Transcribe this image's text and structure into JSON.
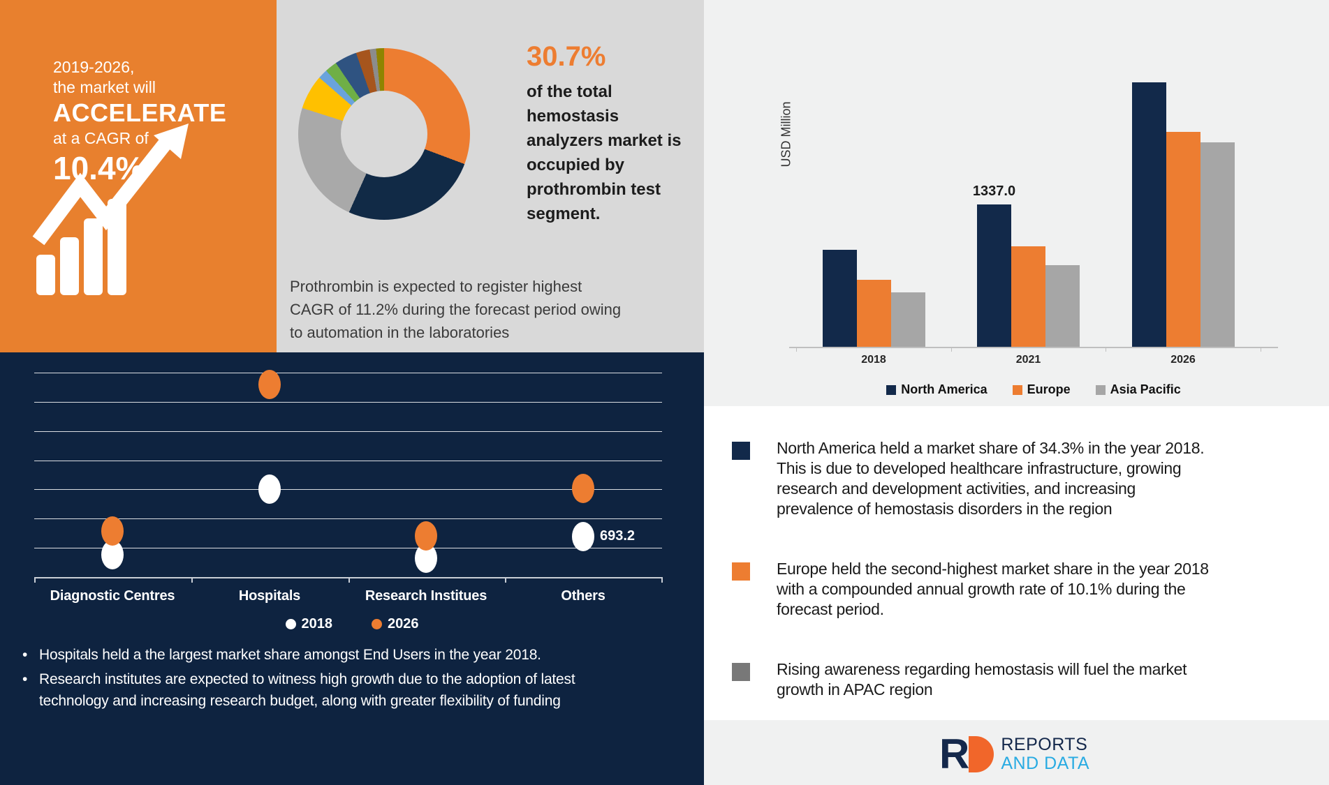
{
  "accelerate_panel": {
    "line1": "2019-2026,",
    "line2": "the market will",
    "line3": "ACCELERATE",
    "line4": "at a CAGR of",
    "line5": "10.4%"
  },
  "donut_panel": {
    "headline_value": "30.7%",
    "headline_rest": "of the total\nhemostasis\nanalyzers market is\noccupied by\nprothrombin test\nsegment.",
    "paragraph": "Prothrombin is expected to register highest\nCAGR of 11.2% during the forecast period owing\nto automation in the laboratories"
  },
  "navy_panel": {
    "bullets": [
      "Hospitals held a the largest market share amongst End Users in the year 2018.",
      "Research institutes are expected to witness high growth due to the adoption of latest\ntechnology and increasing research budget, along with greater flexibility of funding"
    ]
  },
  "right_panel": {
    "bullets": [
      {
        "color": "#12294A",
        "text": "North America held a market share of 34.3% in the year 2018.\nThis is due to developed healthcare infrastructure, growing\nresearch and development activities, and increasing\nprevalence of hemostasis disorders in the region"
      },
      {
        "color": "#ED7D31",
        "text": "Europe held the second-highest market share in the year 2018\nwith a compounded annual growth rate of 10.1% during the\nforecast period."
      },
      {
        "color": "#787878",
        "text": "Rising awareness regarding hemostasis will fuel the market\ngrowth in APAC region"
      }
    ]
  },
  "logo": {
    "mark": "R",
    "word1": "REPORTS",
    "word2": "AND DATA",
    "navy": "#14284B",
    "orange": "#F1662A",
    "blue": "#29ABE2"
  },
  "chart_data": [
    {
      "type": "pie",
      "title": "Hemostasis analyzers market by test segment",
      "donut": true,
      "values": [
        30.7,
        26.0,
        23.2,
        6.5,
        1.8,
        2.3,
        4.2,
        2.6,
        1.2,
        1.5
      ],
      "colors": [
        "#ED7D31",
        "#112A46",
        "#A9A9A9",
        "#FFC000",
        "#6AA3DC",
        "#6FAF46",
        "#2F5381",
        "#A6551D",
        "#8C8C8C",
        "#8F8400"
      ],
      "highlight": {
        "value": 30.7,
        "label": "prothrombin test segment"
      }
    },
    {
      "type": "bar",
      "categories": [
        "2018",
        "2021",
        "2026"
      ],
      "series": [
        {
          "name": "North America",
          "color": "#12294A",
          "values": [
            910,
            1337,
            2480
          ]
        },
        {
          "name": "Europe",
          "color": "#ED7D31",
          "values": [
            630,
            945,
            2015
          ]
        },
        {
          "name": "Asia Pacific",
          "color": "#A6A6A6",
          "values": [
            510,
            765,
            1920
          ]
        }
      ],
      "ylabel": "USD Million",
      "ylim": [
        0,
        2600
      ],
      "grid": false,
      "legend_position": "bottom",
      "data_labels": [
        {
          "series": 0,
          "category": 1,
          "text": "1337.0"
        }
      ]
    },
    {
      "type": "scatter",
      "categories": [
        "Diagnostic Centres",
        "Hospitals",
        "Research Institues",
        "Others"
      ],
      "series": [
        {
          "name": "2018",
          "color": "#FFFFFF",
          "values": [
            380,
            1500,
            320,
            693.2
          ]
        },
        {
          "name": "2026",
          "color": "#ED7D31",
          "values": [
            790,
            3300,
            700,
            1520
          ]
        }
      ],
      "ylim": [
        0,
        3500
      ],
      "gridline_step": 500,
      "grid": true,
      "legend_position": "bottom",
      "data_labels": [
        {
          "series": 0,
          "category": 3,
          "text": "693.2"
        }
      ]
    }
  ]
}
